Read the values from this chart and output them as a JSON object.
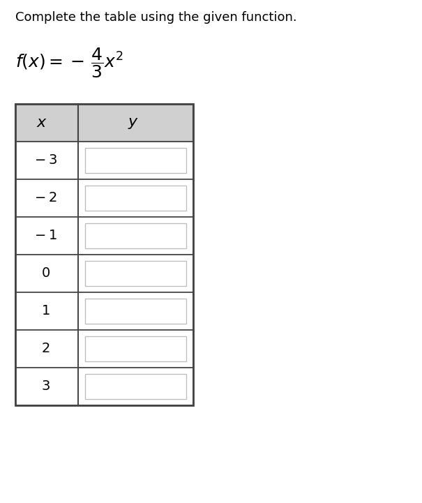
{
  "title": "Complete the table using the given function.",
  "x_values": [
    "− 3",
    "− 2",
    "− 1",
    "0",
    "1",
    "2",
    "3"
  ],
  "col_header_x": "$x$",
  "col_header_y": "$y$",
  "header_bg": "#d0d0d0",
  "cell_bg_white": "#ffffff",
  "border_color_outer": "#444444",
  "border_color_inner": "#bbbbbb",
  "title_fontsize": 13,
  "func_fontsize": 15,
  "cell_fontsize": 13,
  "header_fontsize": 14,
  "fig_width": 6.05,
  "fig_height": 7.21,
  "dpi": 100
}
